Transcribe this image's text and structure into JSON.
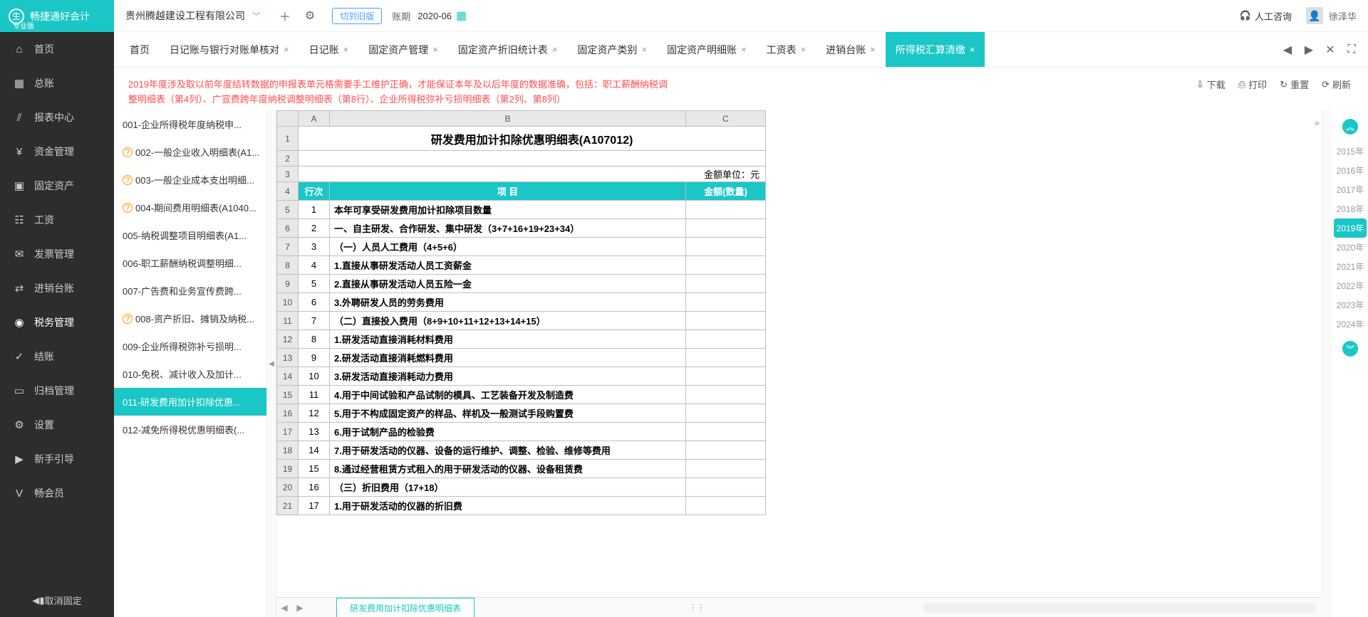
{
  "brand": {
    "name": "畅捷通好会计",
    "edition": "专业版"
  },
  "company": "贵州腾越建设工程有限公司",
  "header": {
    "old_version": "切到旧版",
    "period_label": "账期",
    "period_value": "2020-06",
    "consult": "人工咨询",
    "user_name": "徐泽华"
  },
  "sidebar": [
    {
      "icon": "⌂",
      "label": "首页"
    },
    {
      "icon": "▦",
      "label": "总账"
    },
    {
      "icon": "⫽",
      "label": "报表中心"
    },
    {
      "icon": "¥",
      "label": "资金管理"
    },
    {
      "icon": "▣",
      "label": "固定资产"
    },
    {
      "icon": "☷",
      "label": "工资"
    },
    {
      "icon": "✉",
      "label": "发票管理"
    },
    {
      "icon": "⇄",
      "label": "进销台账"
    },
    {
      "icon": "◉",
      "label": "税务管理",
      "active": true
    },
    {
      "icon": "✓",
      "label": "结账"
    },
    {
      "icon": "▭",
      "label": "归档管理"
    },
    {
      "icon": "⚙",
      "label": "设置"
    },
    {
      "icon": "▶",
      "label": "新手引导"
    },
    {
      "icon": "V",
      "label": "畅会员"
    }
  ],
  "pin_label": "取消固定",
  "tabs": [
    {
      "label": "首页"
    },
    {
      "label": "日记账与银行对账单核对",
      "close": true
    },
    {
      "label": "日记账",
      "close": true
    },
    {
      "label": "固定资产管理",
      "close": true
    },
    {
      "label": "固定资产折旧统计表",
      "close": true
    },
    {
      "label": "固定资产类别",
      "close": true
    },
    {
      "label": "固定资产明细账",
      "close": true
    },
    {
      "label": "工资表",
      "close": true
    },
    {
      "label": "进销台账",
      "close": true
    },
    {
      "label": "所得税汇算清缴",
      "close": true,
      "active": true
    }
  ],
  "warning": "2019年度涉及取以前年度结转数据的申报表单元格需要手工维护正确，才能保证本年及以后年度的数据准确，包括：职工薪酬纳税调整明细表（第4列）、广宣费跨年度纳税调整明细表（第8行）、企业所得税弥补亏损明细表（第2列、第8列）",
  "toolbar": {
    "download": "下载",
    "print": "打印",
    "reset": "重置",
    "refresh": "刷新"
  },
  "reports": [
    {
      "label": "001-企业所得税年度纳税申..."
    },
    {
      "label": "002-一般企业收入明细表(A1...",
      "q": true
    },
    {
      "label": "003-一般企业成本支出明细...",
      "q": true
    },
    {
      "label": "004-期间费用明细表(A1040...",
      "q": true
    },
    {
      "label": "005-纳税调整项目明细表(A1..."
    },
    {
      "label": "006-职工薪酬纳税调整明细..."
    },
    {
      "label": "007-广告费和业务宣传费跨..."
    },
    {
      "label": "008-资产折旧、摊销及纳税...",
      "q": true
    },
    {
      "label": "009-企业所得税弥补亏损明..."
    },
    {
      "label": "010-免税、减计收入及加计..."
    },
    {
      "label": "011-研发费用加计扣除优惠...",
      "active": true
    },
    {
      "label": "012-减免所得税优惠明细表(..."
    }
  ],
  "sheet": {
    "title": "研发费用加计扣除优惠明细表(A107012)",
    "unit": "金额单位：元",
    "columns": {
      "A": "A",
      "B": "B",
      "C": "C"
    },
    "header_row": {
      "seq": "行次",
      "item": "项   目",
      "amount": "金额(数量)"
    },
    "rows": [
      {
        "n": "1",
        "text": "本年可享受研发费用加计扣除项目数量"
      },
      {
        "n": "2",
        "text": "一、自主研发、合作研发、集中研发（3+7+16+19+23+34）"
      },
      {
        "n": "3",
        "text": "（一）人员人工费用（4+5+6）"
      },
      {
        "n": "4",
        "text": "1.直接从事研发活动人员工资薪金"
      },
      {
        "n": "5",
        "text": "2.直接从事研发活动人员五险一金"
      },
      {
        "n": "6",
        "text": "3.外聘研发人员的劳务费用"
      },
      {
        "n": "7",
        "text": "（二）直接投入费用（8+9+10+11+12+13+14+15）"
      },
      {
        "n": "8",
        "text": "1.研发活动直接消耗材料费用"
      },
      {
        "n": "9",
        "text": "2.研发活动直接消耗燃料费用"
      },
      {
        "n": "10",
        "text": "3.研发活动直接消耗动力费用"
      },
      {
        "n": "11",
        "text": "4.用于中间试验和产品试制的模具、工艺装备开发及制造费"
      },
      {
        "n": "12",
        "text": "5.用于不构成固定资产的样品、样机及一般测试手段购置费"
      },
      {
        "n": "13",
        "text": "6.用于试制产品的检验费"
      },
      {
        "n": "14",
        "text": "7.用于研发活动的仪器、设备的运行维护、调整、检验、维修等费用"
      },
      {
        "n": "15",
        "text": "8.通过经营租赁方式租入的用于研发活动的仪器、设备租赁费"
      },
      {
        "n": "16",
        "text": "（三）折旧费用（17+18）"
      },
      {
        "n": "17",
        "text": "1.用于研发活动的仪器的折旧费"
      }
    ],
    "tab_name": "研发费用加计扣除优惠明细表"
  },
  "years": [
    "2015年",
    "2016年",
    "2017年",
    "2018年",
    "2019年",
    "2020年",
    "2021年",
    "2022年",
    "2023年",
    "2024年"
  ],
  "active_year": "2019年",
  "colors": {
    "primary": "#1bc6c6",
    "sidebar_bg": "#2d2d2d",
    "warning": "#ff4d4f",
    "grid_border": "#c0c0c0"
  }
}
